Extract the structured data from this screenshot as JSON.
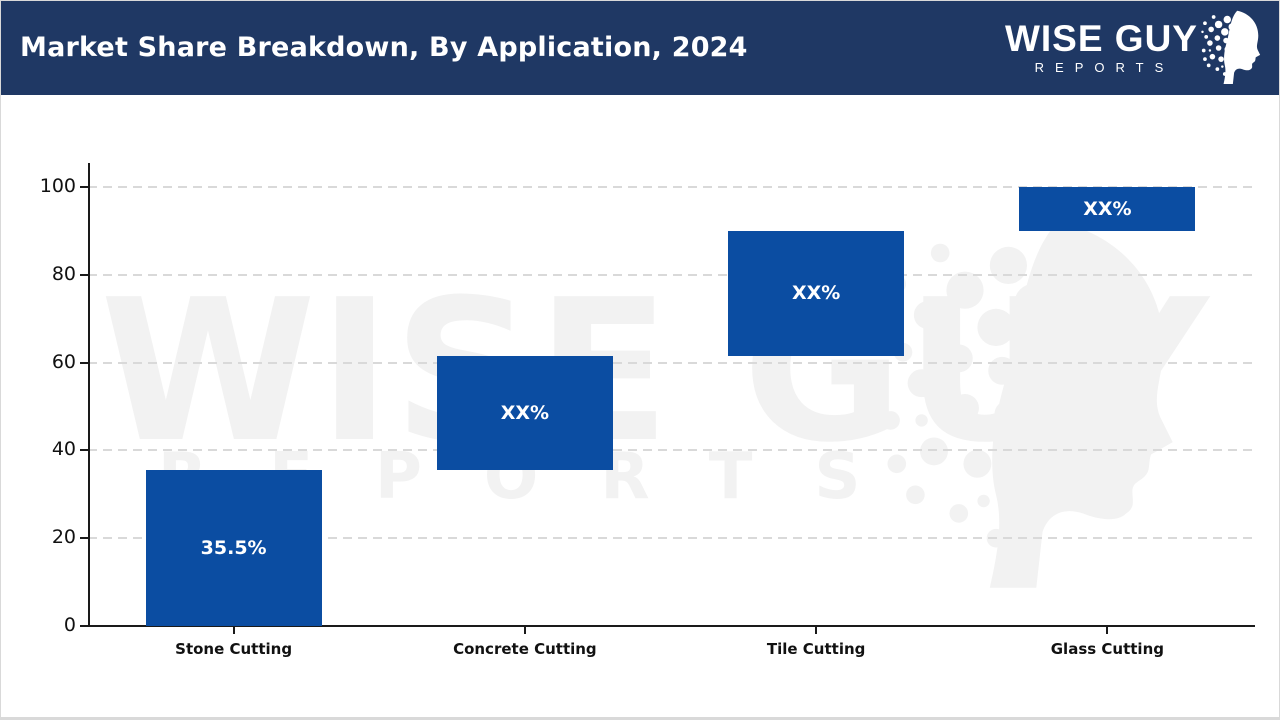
{
  "header": {
    "title": "Market Share Breakdown, By Application, 2024",
    "logo_line1": "WISE GUY",
    "logo_line2": "REPORTS"
  },
  "watermark": {
    "line1": "WISE GUY",
    "line2": "REPORTS"
  },
  "colors": {
    "header_bg": "#1f3864",
    "bar": "#0b4da2",
    "grid": "#d9d9d9",
    "axis": "#1a1a1a",
    "bar_label": "#ffffff",
    "watermark": "#f2f2f2"
  },
  "chart_data": {
    "type": "bar",
    "subtype": "waterfall",
    "title": "Market Share Breakdown, By Application, 2024",
    "categories": [
      "Stone Cutting",
      "Concrete Cutting",
      "Tile Cutting",
      "Glass Cutting"
    ],
    "segments": [
      {
        "category": "Stone Cutting",
        "start": 0,
        "end": 35.5,
        "label": "35.5%"
      },
      {
        "category": "Concrete Cutting",
        "start": 35.5,
        "end": 61.5,
        "label": "XX%"
      },
      {
        "category": "Tile Cutting",
        "start": 61.5,
        "end": 90,
        "label": "XX%"
      },
      {
        "category": "Glass Cutting",
        "start": 90,
        "end": 100,
        "label": "XX%"
      }
    ],
    "ylim": [
      0,
      100
    ],
    "yticks": [
      0,
      20,
      40,
      60,
      80,
      100
    ],
    "grid": "dashed-horizontal",
    "legend": "none",
    "bar_color": "#0b4da2"
  }
}
